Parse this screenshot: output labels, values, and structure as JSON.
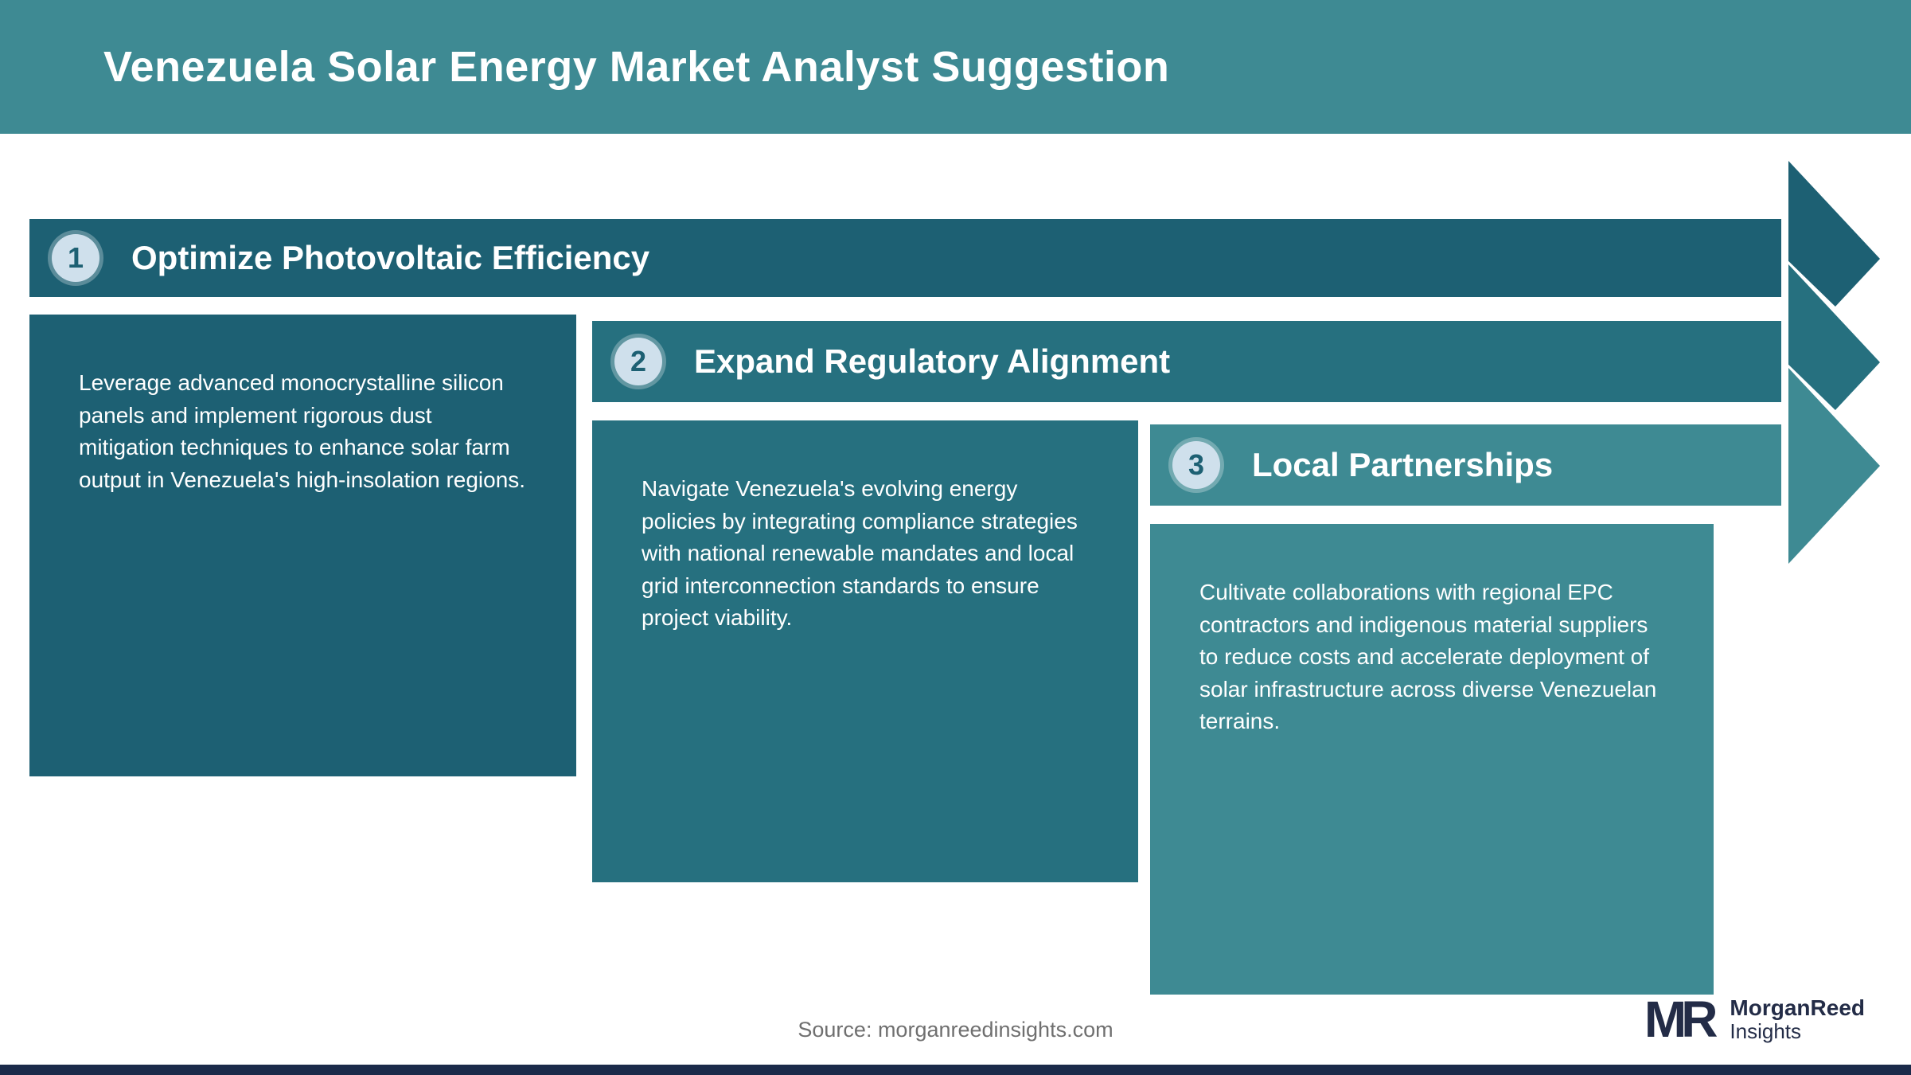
{
  "header": {
    "title": "Venezuela Solar Energy Market Analyst Suggestion"
  },
  "steps": [
    {
      "number": "1",
      "title": "Optimize Photovoltaic Efficiency",
      "description": "Leverage advanced monocrystalline silicon panels and implement rigorous dust mitigation techniques to enhance solar farm output in Venezuela's high-insolation regions."
    },
    {
      "number": "2",
      "title": "Expand Regulatory Alignment",
      "description": "Navigate Venezuela's evolving energy policies by integrating compliance strategies with national renewable mandates and local grid interconnection standards to ensure project viability."
    },
    {
      "number": "3",
      "title": "Local Partnerships",
      "description": "Cultivate collaborations with regional EPC contractors and indigenous material suppliers to reduce costs and accelerate deployment of solar infrastructure across diverse Venezuelan terrains."
    }
  ],
  "footer": {
    "source": "Source: morganreedinsights.com",
    "logo_monogram": "MR",
    "logo_name": "MorganReed",
    "logo_sub": "Insights"
  },
  "colors": {
    "header_bg": "#3e8a93",
    "step1": "#1d6073",
    "step2": "#26707f",
    "step3": "#3e8a93",
    "circle_bg": "#cfe0ec",
    "circle_text": "#1d6073",
    "accent_bar": "#1b2a4a",
    "source_text": "#6f6f6f",
    "logo_color": "#232c47"
  }
}
